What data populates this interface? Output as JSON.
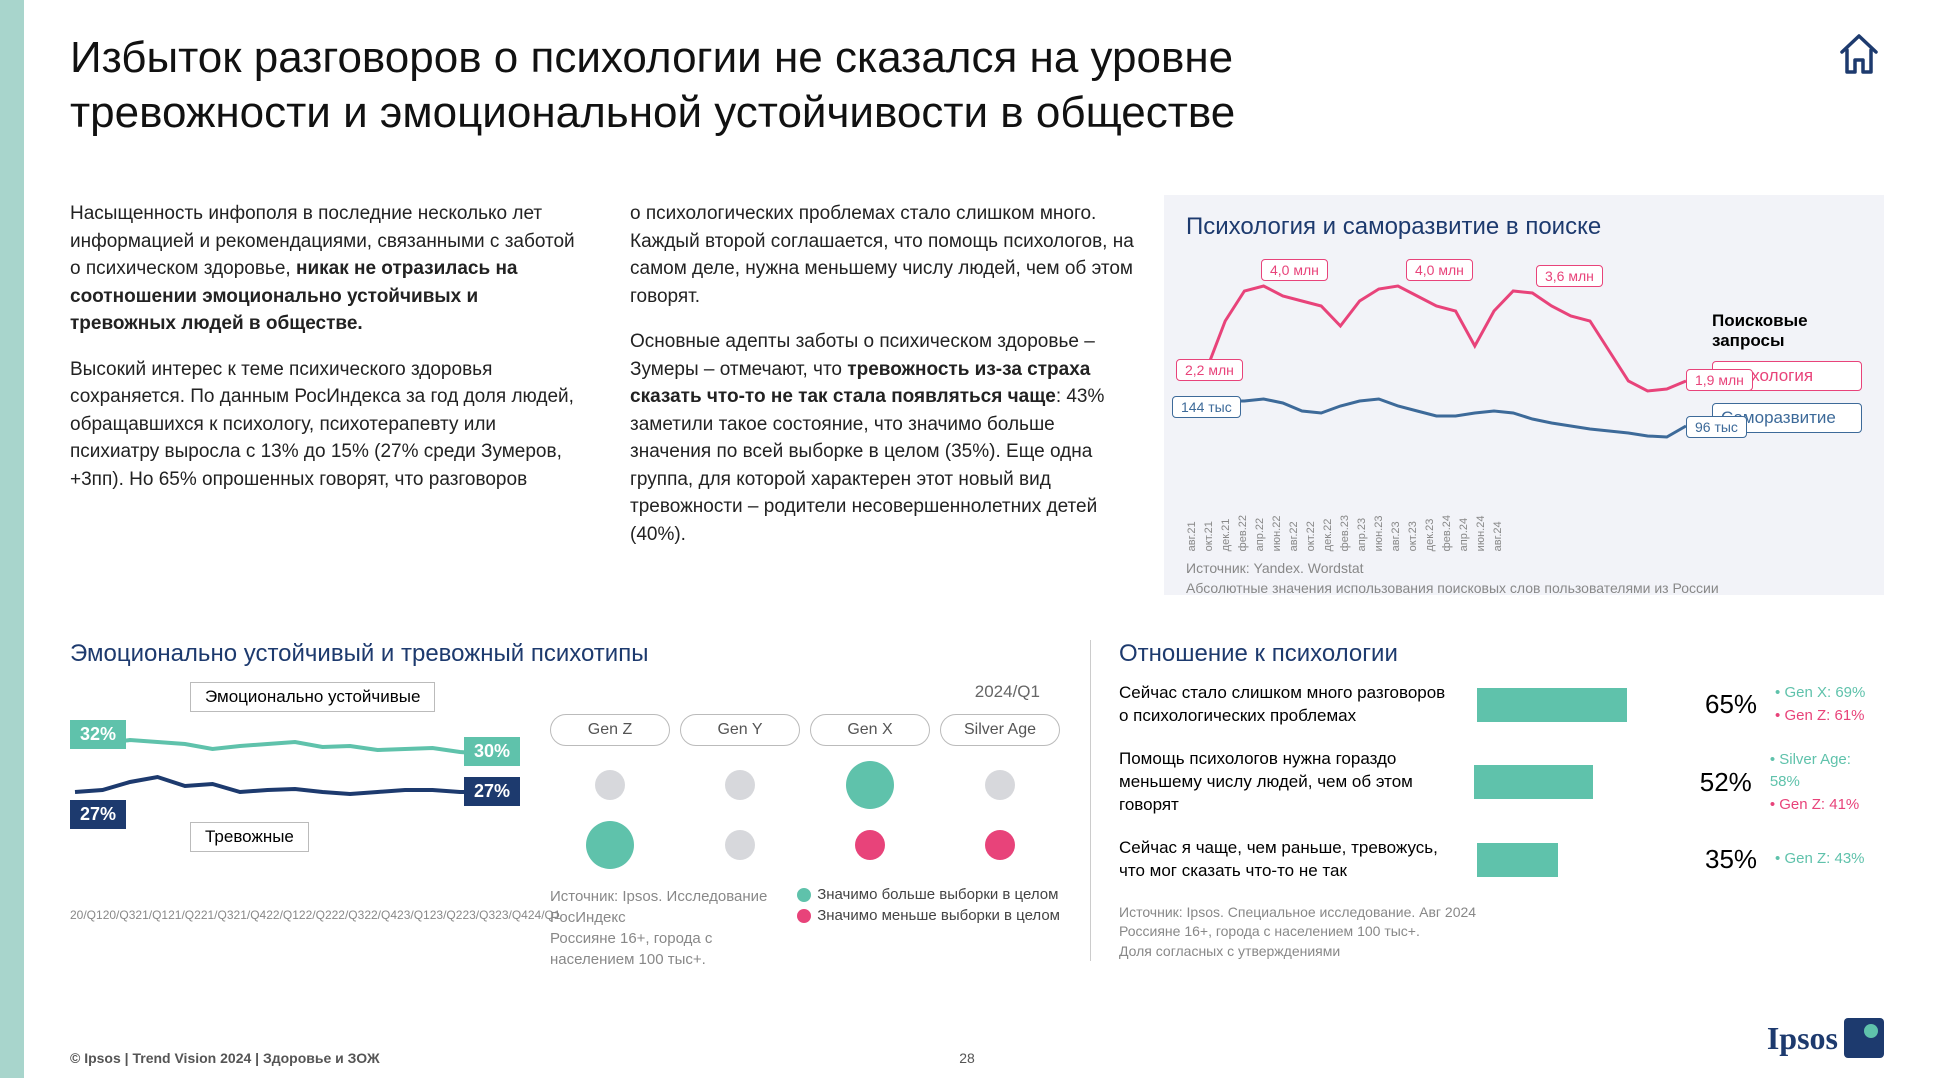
{
  "colors": {
    "teal": "#5fc2ab",
    "navy": "#1d3a6e",
    "pink": "#e8437a",
    "steel": "#3d6a99",
    "grey": "#d7d8dc",
    "grey_text": "#888888",
    "panel_bg": "#f2f3f8"
  },
  "title": "Избыток разговоров о психологии не сказался на уровне тревожности и эмоциональной устойчивости в обществе",
  "text_col1": {
    "p1a": "Насыщенность инфополя в последние несколько лет информацией и рекомендациями, связанными с заботой о психическом здоровье, ",
    "p1b": "никак не отразилась на соотношении эмоционально устойчивых и тревожных людей в обществе.",
    "p2": "Высокий интерес к теме психического здоровья сохраняется. По данным РосИндекса за год доля людей, обращавшихся к психологу, психотерапевту или психиатру выросла с 13% до 15% (27% среди Зумеров, +3пп). Но 65% опрошенных говорят, что разговоров"
  },
  "text_col2": {
    "p1": "о психологических проблемах стало слишком много. Каждый второй соглашается, что помощь психологов, на самом деле, нужна меньшему числу людей, чем об этом говорят.",
    "p2a": "Основные адепты заботы о психическом здоровье – Зумеры – отмечают, что ",
    "p2b": "тревожность из-за страха сказать что-то не так стала появляться чаще",
    "p2c": ": 43% заметили такое состояние, что значимо больше значения по всей выборке в целом (35%). Еще одна группа, для которой характерен этот новый вид тревожности – родители несовершеннолетних детей (40%)."
  },
  "search": {
    "title": "Психология и саморазвитие в поиске",
    "legend_header": "Поисковые запросы",
    "series": [
      {
        "name": "Психология",
        "color": "#e8437a"
      },
      {
        "name": "Саморазвитие",
        "color": "#3d6a99"
      }
    ],
    "psych_points": {
      "start_label": "2,2 млн",
      "peaks": [
        "4,0 млн",
        "4,0 млн",
        "3,6 млн"
      ],
      "end_label": "1,9 млн",
      "path_y": [
        120,
        70,
        40,
        35,
        45,
        50,
        55,
        75,
        50,
        38,
        35,
        45,
        55,
        60,
        95,
        60,
        40,
        42,
        55,
        65,
        70,
        100,
        130,
        140,
        138,
        130
      ]
    },
    "self_points": {
      "start_label": "144 тыс",
      "end_label": "96 тыс",
      "path_y": [
        155,
        150,
        150,
        148,
        152,
        160,
        162,
        155,
        150,
        148,
        155,
        160,
        165,
        165,
        162,
        160,
        162,
        168,
        172,
        175,
        178,
        180,
        182,
        185,
        186,
        175
      ]
    },
    "x_ticks": [
      "авг.21",
      "окт.21",
      "дек.21",
      "фев.22",
      "апр.22",
      "июн.22",
      "авг.22",
      "окт.22",
      "дек.22",
      "фев.23",
      "апр.23",
      "июн.23",
      "авг.23",
      "окт.23",
      "дек.23",
      "фев.24",
      "апр.24",
      "июн.24",
      "авг.24"
    ],
    "source1": "Источник: Yandex. Wordstat",
    "source2": "Абсолютные значения использования поисковых слов пользователями из России"
  },
  "psych": {
    "title": "Эмоционально устойчивый и тревожный психотипы",
    "period": "2024/Q1",
    "series1": {
      "name": "Эмоционально устойчивые",
      "color": "#5fc2ab",
      "start": "32%",
      "end": "30%",
      "y": [
        55,
        62,
        58,
        60,
        62,
        67,
        64,
        62,
        60,
        65,
        64,
        68,
        67,
        66,
        70,
        72,
        70
      ]
    },
    "series2": {
      "name": "Тревожные",
      "color": "#1d3a6e",
      "start": "27%",
      "end": "27%",
      "y": [
        110,
        108,
        100,
        95,
        104,
        102,
        110,
        108,
        107,
        110,
        112,
        110,
        108,
        108,
        110,
        110,
        110
      ]
    },
    "x_ticks": [
      "20/Q1",
      "20/Q3",
      "21/Q1",
      "21/Q2",
      "21/Q3",
      "21/Q4",
      "22/Q1",
      "22/Q2",
      "22/Q3",
      "22/Q4",
      "23/Q1",
      "23/Q2",
      "23/Q3",
      "23/Q4",
      "24/Q1"
    ],
    "gens": [
      "Gen Z",
      "Gen Y",
      "Gen X",
      "Silver Age"
    ],
    "row1": [
      {
        "color": "#d7d8dc",
        "size": 30
      },
      {
        "color": "#d7d8dc",
        "size": 30
      },
      {
        "color": "#5fc2ab",
        "size": 48
      },
      {
        "color": "#d7d8dc",
        "size": 30
      }
    ],
    "row2": [
      {
        "color": "#5fc2ab",
        "size": 48
      },
      {
        "color": "#d7d8dc",
        "size": 30
      },
      {
        "color": "#e8437a",
        "size": 30
      },
      {
        "color": "#e8437a",
        "size": 30
      }
    ],
    "source": "Источник: Ipsos. Исследование РосИндекс\nРоссияне 16+, города с населением 100 тыс+.",
    "leg_more": "Значимо больше выборки в целом",
    "leg_less": "Значимо меньше выборки в целом"
  },
  "attitude": {
    "title": "Отношение к психологии",
    "rows": [
      {
        "text": "Сейчас стало слишком много разговоров о психологических проблемах",
        "val": "65%",
        "bar": 65,
        "notes": [
          {
            "t": "Gen X: 69%",
            "c": "#5fc2ab"
          },
          {
            "t": "Gen Z: 61%",
            "c": "#e8437a"
          }
        ]
      },
      {
        "text": "Помощь психологов нужна гораздо меньшему числу людей, чем об этом говорят",
        "val": "52%",
        "bar": 52,
        "notes": [
          {
            "t": "Silver Age: 58%",
            "c": "#5fc2ab"
          },
          {
            "t": "Gen Z: 41%",
            "c": "#e8437a"
          }
        ]
      },
      {
        "text": "Сейчас я чаще, чем раньше, тревожусь, что мог сказать что-то не так",
        "val": "35%",
        "bar": 35,
        "notes": [
          {
            "t": "Gen Z: 43%",
            "c": "#5fc2ab"
          }
        ]
      }
    ],
    "source": "Источник: Ipsos. Специальное исследование. Авг 2024\nРоссияне 16+, города с населением 100 тыс+.\nДоля согласных с утверждениями"
  },
  "footer": "© Ipsos | Trend Vision 2024 | Здоровье и ЗОЖ",
  "page": "28",
  "logo": "Ipsos"
}
